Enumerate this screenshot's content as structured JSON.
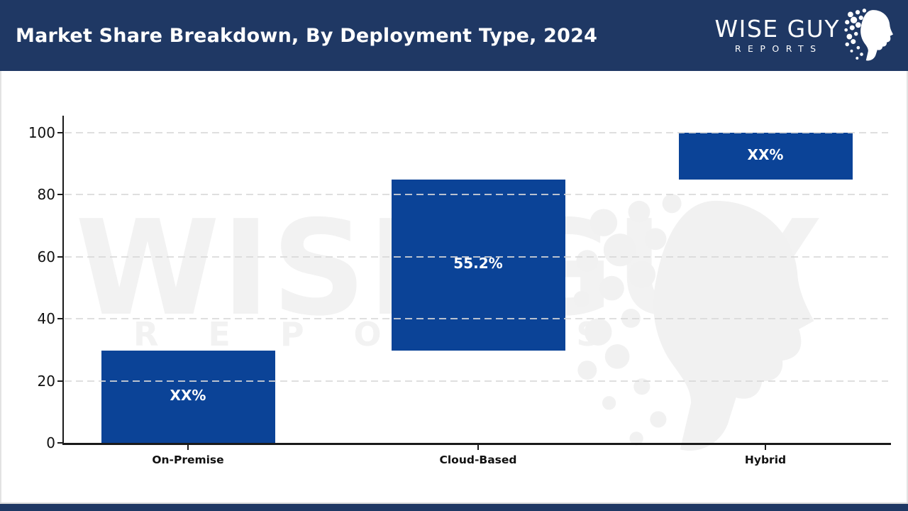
{
  "header": {
    "title": "Market Share Breakdown, By Deployment Type, 2024",
    "logo": {
      "line1": "WISE GUY",
      "line2": "REPORTS"
    }
  },
  "watermark": {
    "line1": "WISE GUY",
    "line2": "REPORTS"
  },
  "colors": {
    "header_bg": "#1f3864",
    "bar": "#0b4397",
    "bar_label": "#ffffff",
    "axis": "#1a1a1a",
    "grid": "#d9d9d9",
    "watermark": "#f2f2f2"
  },
  "chart_data": {
    "type": "bar",
    "subtype": "floating-waterfall",
    "title": "Market Share Breakdown, By Deployment Type, 2024",
    "categories": [
      "On-Premise",
      "Cloud-Based",
      "Hybrid"
    ],
    "bars": [
      {
        "category": "On-Premise",
        "start": 0,
        "end": 29.8,
        "label": "XX%"
      },
      {
        "category": "Cloud-Based",
        "start": 29.8,
        "end": 85.0,
        "label": "55.2%"
      },
      {
        "category": "Hybrid",
        "start": 85.0,
        "end": 100,
        "label": "XX%"
      }
    ],
    "xlabel": "",
    "ylabel": "",
    "ylim": [
      0,
      100
    ],
    "yticks": [
      0,
      20,
      40,
      60,
      80,
      100
    ],
    "grid": "horizontal-dashed-over-bars",
    "legend": "none"
  }
}
